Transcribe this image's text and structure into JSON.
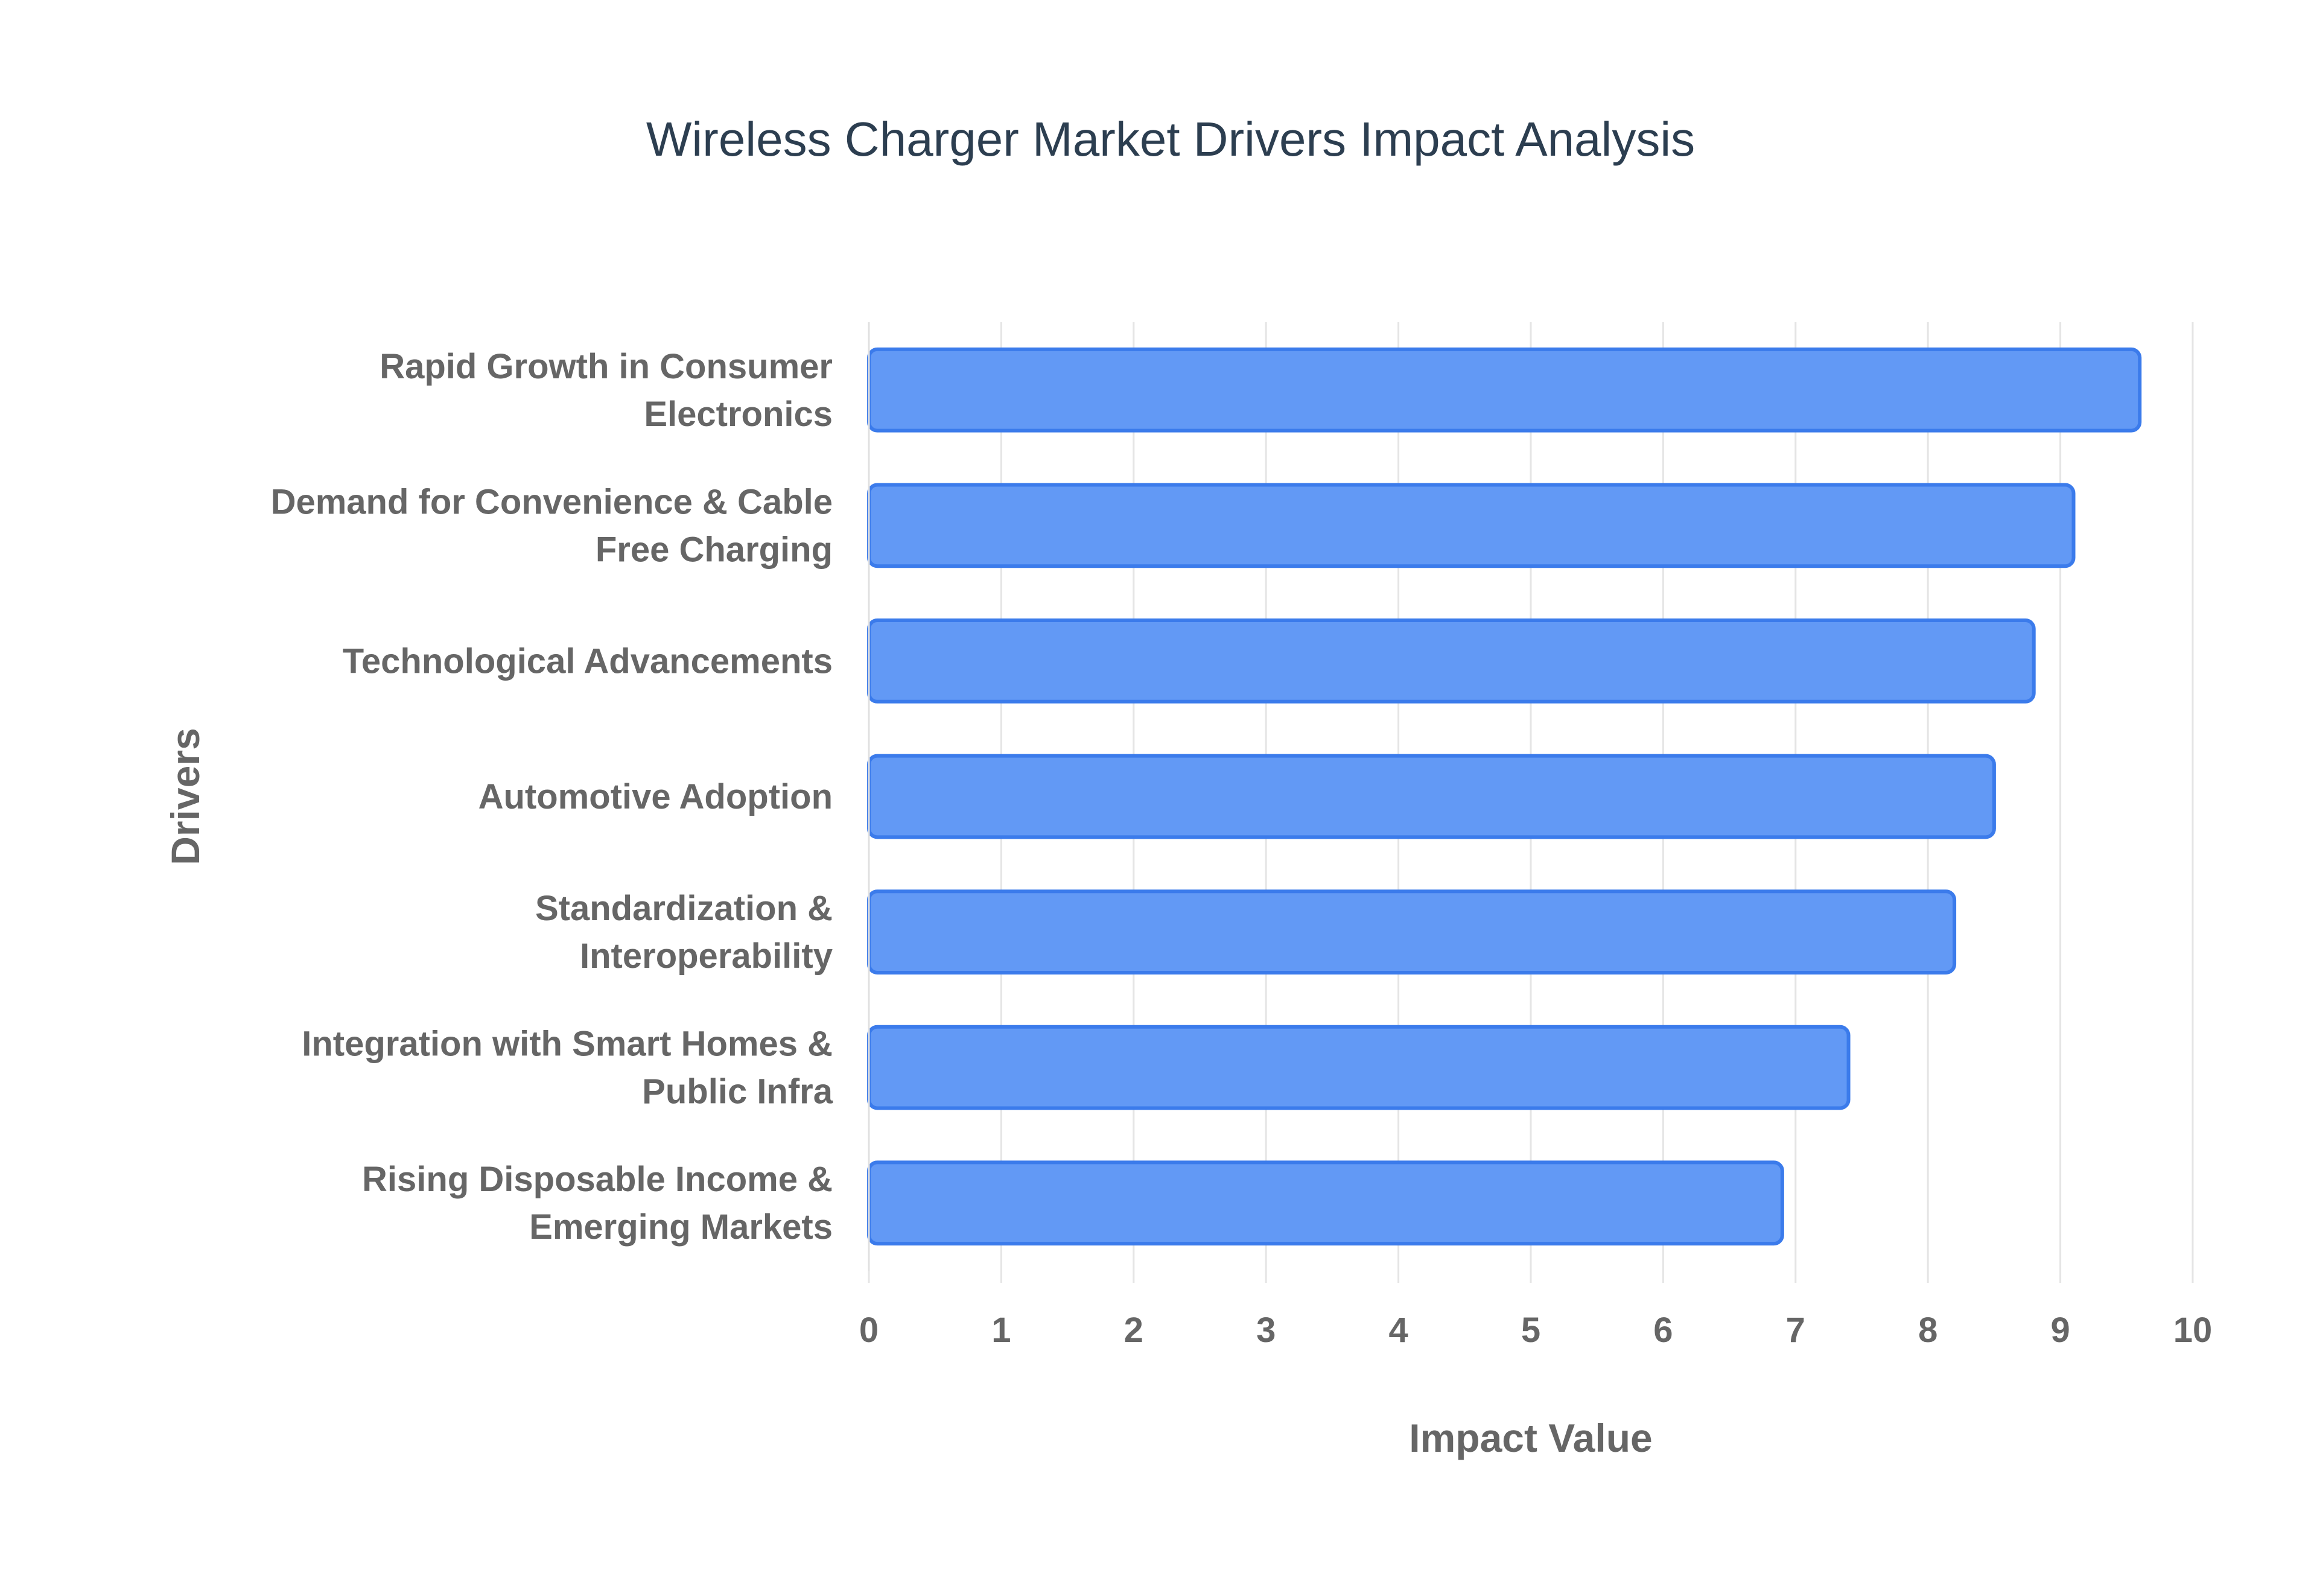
{
  "chart_data": {
    "type": "bar",
    "orientation": "horizontal",
    "title": "Wireless Charger Market Drivers Impact Analysis",
    "xlabel": "Impact Value",
    "ylabel": "Drivers",
    "xlim": [
      0,
      10
    ],
    "xticks": [
      "0",
      "1",
      "2",
      "3",
      "4",
      "5",
      "6",
      "7",
      "8",
      "9",
      "10"
    ],
    "grid": true,
    "bar_color": "#6299F5",
    "bar_border_color": "#3B7BEB",
    "categories": [
      [
        "Rapid Growth in Consumer",
        "Electronics"
      ],
      [
        "Demand for Convenience & Cable",
        "Free Charging"
      ],
      [
        "Technological Advancements"
      ],
      [
        "Automotive Adoption"
      ],
      [
        "Standardization &",
        "Interoperability"
      ],
      [
        "Integration with Smart Homes &",
        "Public Infra"
      ],
      [
        "Rising Disposable Income &",
        "Emerging Markets"
      ]
    ],
    "values": [
      9.6,
      9.1,
      8.8,
      8.5,
      8.2,
      7.4,
      6.9
    ]
  }
}
